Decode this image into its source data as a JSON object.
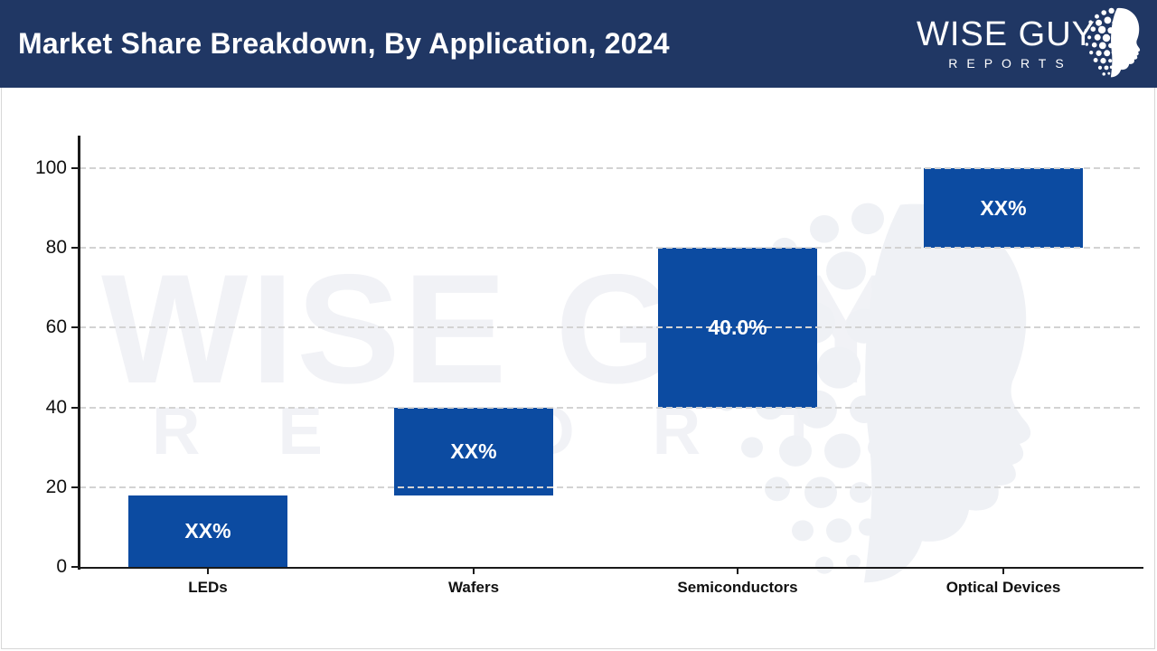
{
  "header": {
    "title": "Market Share Breakdown, By Application, 2024",
    "logo": {
      "name_top": "WISE GUY",
      "name_bottom": "REPORTS"
    }
  },
  "watermark": {
    "line1": "WISE GUY",
    "line2": "REPORTS"
  },
  "chart_data": {
    "type": "bar",
    "subtype": "waterfall",
    "title": "Market Share Breakdown, By Application, 2024",
    "categories": [
      "LEDs",
      "Wafers",
      "Semiconductors",
      "Optical Devices"
    ],
    "segments": [
      {
        "category": "LEDs",
        "start": 0,
        "end": 18,
        "label": "XX%"
      },
      {
        "category": "Wafers",
        "start": 18,
        "end": 40,
        "label": "XX%"
      },
      {
        "category": "Semiconductors",
        "start": 40,
        "end": 80,
        "label": "40.0%"
      },
      {
        "category": "Optical Devices",
        "start": 80,
        "end": 100,
        "label": "XX%"
      }
    ],
    "xlabel": "",
    "ylabel": "",
    "ylim": [
      0,
      100
    ],
    "yticks": [
      0,
      20,
      40,
      60,
      80,
      100
    ],
    "grid": "horizontal dashed",
    "legend": "none"
  },
  "colors": {
    "header_bg": "#203764",
    "title_text": "#ffffff",
    "bar_fill": "#0c4ba1",
    "bar_label_text": "#ffffff",
    "grid_line": "#d3d3d3",
    "axis_line": "#1a1a1a",
    "tick_text": "#111111",
    "watermark": "#f1f2f6",
    "page_bg": "#ffffff"
  }
}
